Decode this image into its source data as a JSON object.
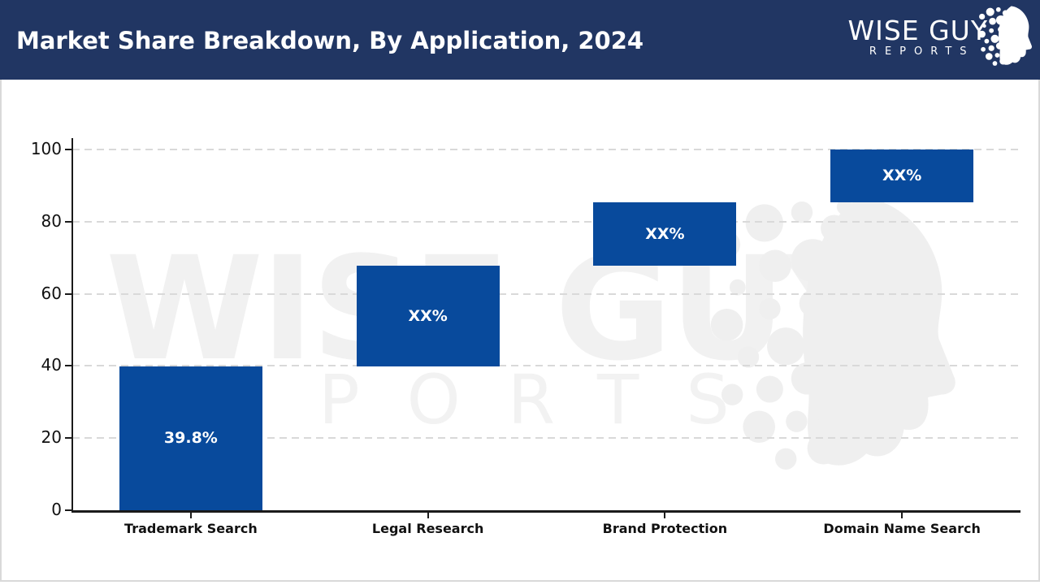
{
  "header": {
    "title": "Market Share Breakdown, By Application, 2024",
    "bg_color": "#213663",
    "logo": {
      "line1": "WISE GUY",
      "line2": "REPORTS"
    }
  },
  "watermark": {
    "line1": "WISE GUY",
    "line2": "PORTS"
  },
  "chart_data": {
    "type": "bar",
    "subtype": "waterfall-stacked-market-share",
    "title": "Market Share Breakdown, By Application, 2024",
    "xlabel": "",
    "ylabel": "",
    "ylim": [
      0,
      103
    ],
    "yticks": [
      0,
      20,
      40,
      60,
      80,
      100
    ],
    "grid": true,
    "legend": null,
    "bar_color": "#084a9c",
    "label_color": "#ffffff",
    "categories": [
      "Trademark Search",
      "Legal Research",
      "Brand Protection",
      "Domain Name Search"
    ],
    "segments": [
      {
        "category": "Trademark Search",
        "from": 0,
        "to": 39.8,
        "label": "39.8%"
      },
      {
        "category": "Legal Research",
        "from": 39.8,
        "to": 67.8,
        "label": "XX%"
      },
      {
        "category": "Brand Protection",
        "from": 67.8,
        "to": 85.4,
        "label": "XX%"
      },
      {
        "category": "Domain Name Search",
        "from": 85.4,
        "to": 100,
        "label": "XX%"
      }
    ]
  }
}
